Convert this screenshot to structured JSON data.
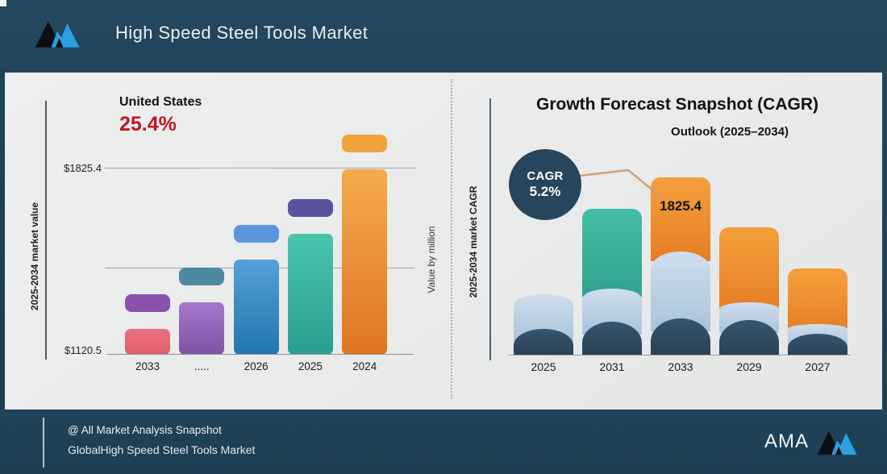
{
  "header": {
    "title": "High Speed Steel Tools Market",
    "logo": "ama-mountain-logo"
  },
  "footer": {
    "line1": "@ All Market Analysis Snapshot",
    "line2": "GlobalHigh Speed Steel Tools Market",
    "brand": "AMA",
    "logo": "ama-mountain-logo"
  },
  "colors": {
    "page_navy": "#1f4156",
    "card_gray": "#e9eaea",
    "highlight_red": "#c01622",
    "badge_navy": "#27465d",
    "connector_tan": "#cfa078",
    "divider_dotted": "#c3ab90"
  },
  "chart_data": [
    {
      "type": "bar",
      "panel": "left",
      "title": "United States",
      "highlight": "25.4%",
      "ylabel": "2025-2034 market value",
      "ylabel_right": "Value by million",
      "categories": [
        "2033",
        ".....",
        "2026",
        "2025",
        "2024"
      ],
      "values": [
        1218,
        1318,
        1479,
        1576,
        1819
      ],
      "yticks": [
        "$1825.4",
        "$1120.5"
      ],
      "ylim": [
        1120.5,
        1825.4
      ],
      "grid": "two horizontal gridlines, baseline at $1120.5, upper gridline at $1825.4",
      "legend": "none",
      "bar_colors": [
        [
          "#ea7080",
          "#e05f6c"
        ],
        [
          "#a478cb",
          "#7d53a4"
        ],
        [
          "#55a1d9",
          "#2176ad"
        ],
        [
          "#49c5ad",
          "#2a9e8f"
        ],
        [
          "#f4ab4e",
          "#e0741f"
        ]
      ],
      "cap_colors": [
        "#8a51ab",
        "#4d89a0",
        "#5d94dd",
        "#59539e",
        "#f1a23c"
      ]
    },
    {
      "type": "bar",
      "subtype": "stacked",
      "panel": "right",
      "title": "Growth Forecast Snapshot (CAGR)",
      "subtitle": "Outlook (2025–2034)",
      "ylabel": "2025-2034 market CAGR",
      "badge": {
        "label": "CAGR",
        "value": "5.2%"
      },
      "annotation": {
        "text": "1825.4",
        "category": "2033"
      },
      "categories": [
        "2025",
        "2031",
        "2033",
        "2029",
        "2027"
      ],
      "series": [
        {
          "name": "base",
          "color_key": "navy",
          "values": [
            33,
            42,
            46,
            44,
            27
          ]
        },
        {
          "name": "mid",
          "color_key": "lightblue",
          "values": [
            43,
            41,
            83,
            22,
            12
          ]
        },
        {
          "name": "top",
          "color_keys": [
            null,
            "teal",
            "orange",
            "orange",
            "orange"
          ],
          "values": [
            0,
            99,
            92,
            93,
            69
          ]
        }
      ],
      "value_unit": "relative height units (no numeric axis shown)",
      "legend": "none",
      "segment_colors": {
        "navy": [
          "#35566f",
          "#2a4156"
        ],
        "lightblue": [
          "#cfdeec",
          "#a9c3da"
        ],
        "teal": [
          "#45bda4",
          "#2fa28d"
        ],
        "orange": [
          "#f4a03c",
          "#e67d24"
        ]
      }
    }
  ]
}
